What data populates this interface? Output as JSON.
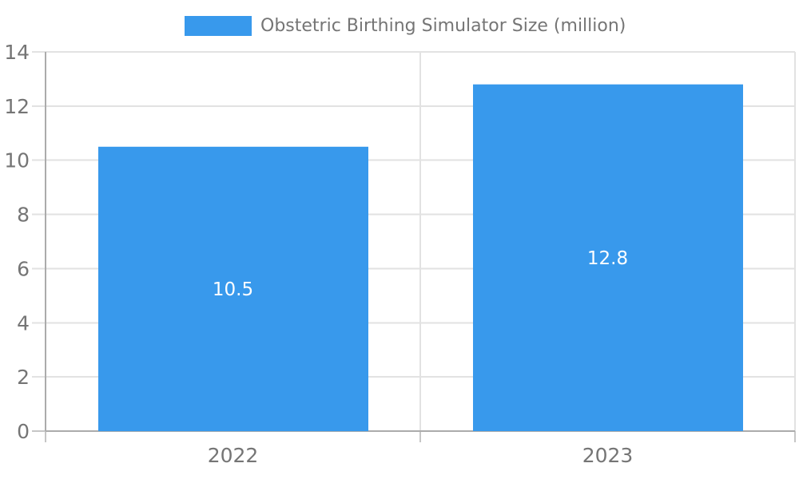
{
  "chart_data": {
    "type": "bar",
    "categories": [
      "2022",
      "2023"
    ],
    "series": [
      {
        "name": "Obstetric Birthing Simulator Size (million)",
        "values": [
          10.5,
          12.8
        ]
      }
    ],
    "data_labels": [
      "10.5",
      "12.8"
    ],
    "title": "",
    "xlabel": "",
    "ylabel": "",
    "ylim": [
      0,
      14
    ],
    "yticks": [
      0,
      2,
      4,
      6,
      8,
      10,
      12,
      14
    ],
    "grid": true,
    "legend_position": "top",
    "colors": {
      "bar": "#3899EC",
      "axis_text": "#757575",
      "data_label": "#FFFFFF",
      "gridline": "#E2E2E2",
      "axis_line": "#ABABAB",
      "tick": "#C6C6C6",
      "background": "#FFFFFF"
    }
  }
}
